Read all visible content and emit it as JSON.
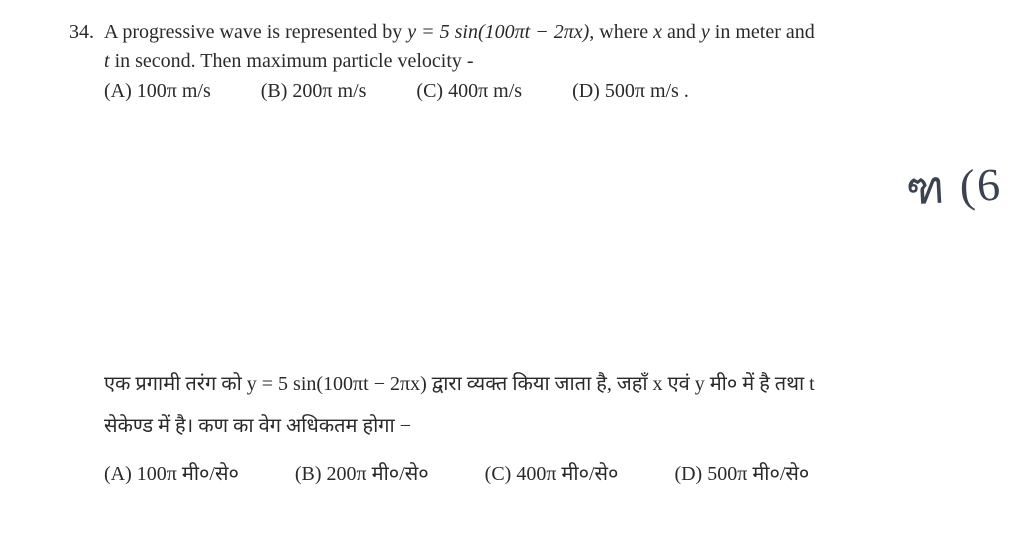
{
  "question": {
    "number": "34.",
    "line1_a": "A progressive wave is represented by ",
    "eq": "y = 5 sin(100πt − 2πx)",
    "line1_b": ", where ",
    "x": "x",
    "and": " and ",
    "y": "y",
    "line1_c": " in meter and",
    "line2_a": "t",
    "line2_b": " in second. Then maximum particle velocity -",
    "options": {
      "a": "(A) 100π  m/s",
      "b": "(B) 200π  m/s",
      "c": "(C) 400π  m/s",
      "d": "(D) 500π m/s ."
    }
  },
  "hand": "ฑ (6",
  "hindi": {
    "line1": "एक प्रगामी तरंग को  y = 5 sin(100πt − 2πx) द्वारा व्यक्त किया जाता है, जहाँ  x एवं  y मी० में है तथा  t",
    "line2": "सेकेण्ड में है। कण का वेग अधिकतम होगा −",
    "options": {
      "a": "(A) 100π मी०/से०",
      "b": "(B) 200π मी०/से०",
      "c": "(C) 400π मी०/से०",
      "d": "(D) 500π  मी०/से०"
    }
  }
}
